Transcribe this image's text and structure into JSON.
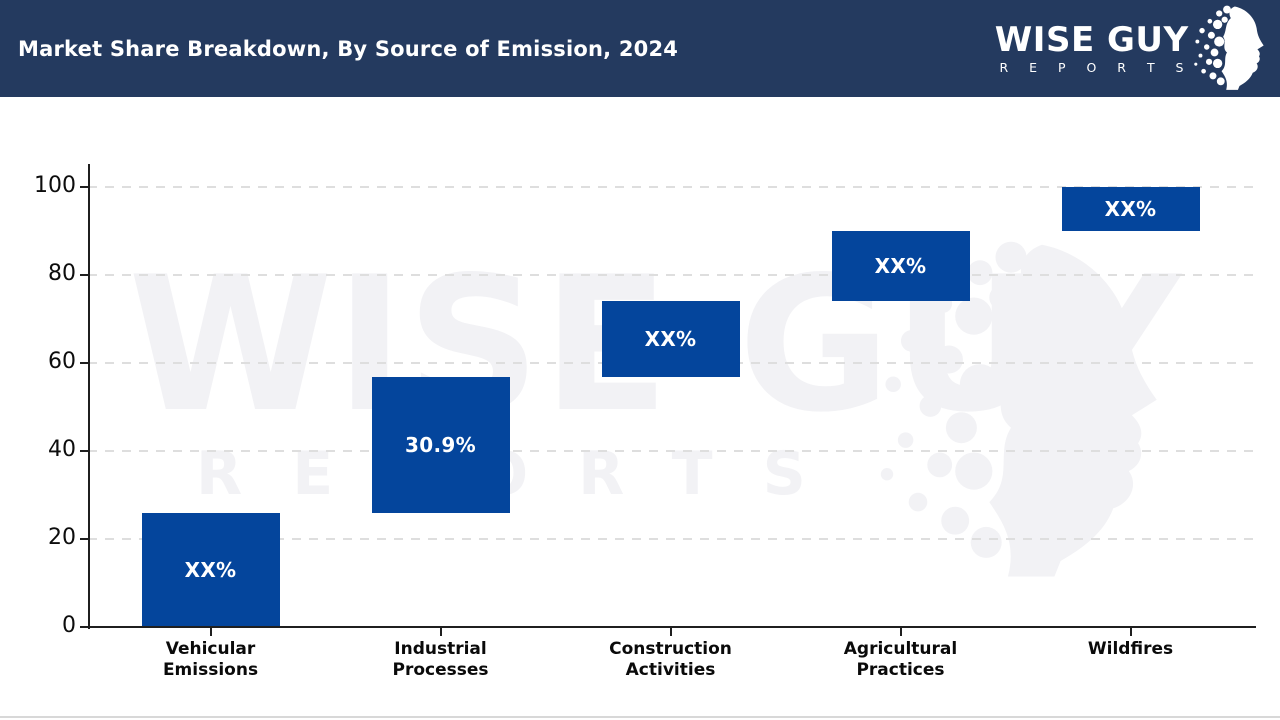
{
  "header": {
    "title": "Market Share Breakdown, By Source of Emission, 2024",
    "logo": {
      "line1": "WISE GUY",
      "line2": "R E P O R T S"
    }
  },
  "watermark": {
    "line1": "WISE GUY",
    "line2": "REPORTS"
  },
  "colors": {
    "header_bg": "#243A5F",
    "bar": "#04459C",
    "grid": "#dedede",
    "axis": "#1f1f1f",
    "bar_label": "#ffffff",
    "watermark": "#f2f2f5"
  },
  "chart_data": {
    "type": "bar",
    "subtype": "waterfall",
    "title": "Market Share Breakdown, By Source of Emission, 2024",
    "categories": [
      [
        "Vehicular",
        "Emissions"
      ],
      [
        "Industrial",
        "Processes"
      ],
      [
        "Construction",
        "Activities"
      ],
      [
        "Agricultural",
        "Practices"
      ],
      [
        "Wildfires"
      ]
    ],
    "segments": [
      {
        "start": 0,
        "end": 26,
        "value_est": 26,
        "label": "XX%"
      },
      {
        "start": 26,
        "end": 56.9,
        "value_est": 30.9,
        "label": "30.9%"
      },
      {
        "start": 56.9,
        "end": 74,
        "value_est": 17.1,
        "label": "XX%"
      },
      {
        "start": 74,
        "end": 90,
        "value_est": 16,
        "label": "XX%"
      },
      {
        "start": 90,
        "end": 100,
        "value_est": 10,
        "label": "XX%"
      }
    ],
    "yticks": [
      0,
      20,
      40,
      60,
      80,
      100
    ],
    "ylim": [
      0,
      100
    ],
    "xlabel": "",
    "ylabel": "",
    "grid": "horizontal-dashed",
    "legend": "none"
  }
}
